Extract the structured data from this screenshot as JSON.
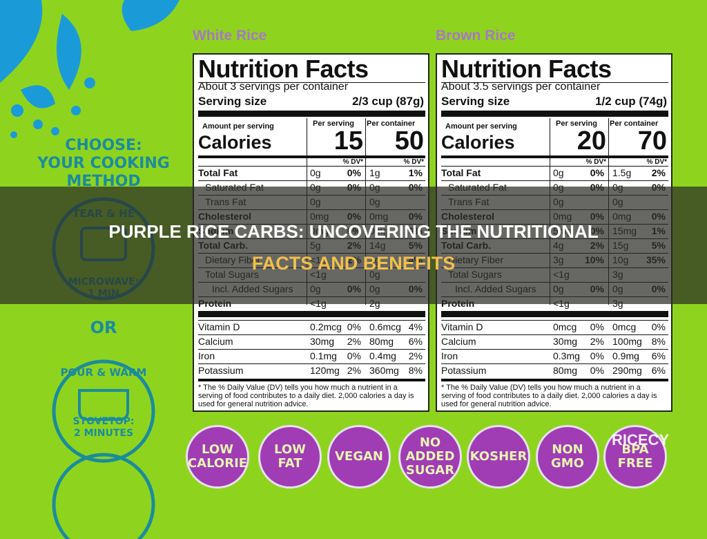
{
  "left": {
    "choose": [
      "CHOOSE:",
      "YOUR COOKING",
      "METHOD"
    ],
    "circle1": "TEAR & HE",
    "microwave": [
      "MICROWAVE:",
      "1 MIN"
    ],
    "or": "OR",
    "circle2": "POUR & WARM",
    "stovetop": [
      "STOVETOP:",
      "2 MINUTES"
    ]
  },
  "labels": [
    {
      "heading": "White Rice",
      "title": "Nutrition Facts",
      "servings": "About 3 servings per container",
      "serving_size_label": "Serving size",
      "serving_size": "2/3 cup (87g)",
      "amount": "Amount per serving",
      "calories_label": "Calories",
      "per_serving": "Per serving",
      "per_container": "Per container",
      "calories_serving": "15",
      "calories_container": "50",
      "dv": "% DV*",
      "rows": [
        {
          "name": "Total Fat",
          "s": "0g",
          "sdv": "0%",
          "c": "1g",
          "cdv": "1%",
          "bold": true
        },
        {
          "name": "Saturated Fat",
          "s": "0g",
          "sdv": "0%",
          "c": "0g",
          "cdv": "0%"
        },
        {
          "name": "Trans Fat",
          "s": "0g",
          "c": "0g"
        },
        {
          "name": "Cholesterol",
          "s": "0mg",
          "sdv": "0%",
          "c": "0mg",
          "cdv": "0%",
          "bold": true
        },
        {
          "name": "Sodium",
          "s": "0mg",
          "sdv": "0%",
          "c": "0mg",
          "cdv": "0%",
          "bold": true
        },
        {
          "name": "Total Carb.",
          "s": "5g",
          "sdv": "2%",
          "c": "14g",
          "cdv": "5%",
          "bold": true
        },
        {
          "name": "Dietary Fiber",
          "s": "<1g",
          "sdv": "2%",
          "c": "1g",
          "cdv": "4%"
        },
        {
          "name": "Total Sugars",
          "s": "<1g",
          "c": "0g"
        },
        {
          "name": "Incl. Added Sugars",
          "s": "0g",
          "sdv": "0%",
          "c": "0g",
          "cdv": "0%"
        },
        {
          "name": "Protein",
          "s": "<1g",
          "c": "2g",
          "bold": true
        }
      ],
      "vitamins": [
        {
          "name": "Vitamin D",
          "s": "0.2mcg",
          "sdv": "0%",
          "c": "0.6mcg",
          "cdv": "4%"
        },
        {
          "name": "Calcium",
          "s": "30mg",
          "sdv": "2%",
          "c": "80mg",
          "cdv": "6%"
        },
        {
          "name": "Iron",
          "s": "0.1mg",
          "sdv": "0%",
          "c": "0.4mg",
          "cdv": "2%"
        },
        {
          "name": "Potassium",
          "s": "120mg",
          "sdv": "2%",
          "c": "360mg",
          "cdv": "8%"
        }
      ],
      "footnote": [
        "* The % Daily Value (DV) tells you how much a nutrient in a",
        "serving of food contributes to a daily diet. 2,000 calories a day is",
        "used for general nutrition advice."
      ]
    },
    {
      "heading": "Brown Rice",
      "title": "Nutrition Facts",
      "servings": "About 3.5 servings per container",
      "serving_size_label": "Serving size",
      "serving_size": "1/2 cup (74g)",
      "amount": "Amount per serving",
      "calories_label": "Calories",
      "per_serving": "Per serving",
      "per_container": "Per container",
      "calories_serving": "20",
      "calories_container": "70",
      "dv": "% DV*",
      "rows": [
        {
          "name": "Total Fat",
          "s": "0g",
          "sdv": "0%",
          "c": "1.5g",
          "cdv": "2%",
          "bold": true
        },
        {
          "name": "Saturated Fat",
          "s": "0g",
          "sdv": "0%",
          "c": "0g",
          "cdv": "0%"
        },
        {
          "name": "Trans Fat",
          "s": "0g",
          "c": "0g"
        },
        {
          "name": "Cholesterol",
          "s": "0mg",
          "sdv": "0%",
          "c": "0mg",
          "cdv": "0%",
          "bold": true
        },
        {
          "name": "Sodium",
          "s": "5mg",
          "sdv": "0%",
          "c": "15mg",
          "cdv": "1%",
          "bold": true
        },
        {
          "name": "Total Carb.",
          "s": "4g",
          "sdv": "2%",
          "c": "15g",
          "cdv": "5%",
          "bold": true
        },
        {
          "name": "Dietary Fiber",
          "s": "3g",
          "sdv": "10%",
          "c": "10g",
          "cdv": "35%"
        },
        {
          "name": "Total Sugars",
          "s": "<1g",
          "c": "3g"
        },
        {
          "name": "Incl. Added Sugars",
          "s": "0g",
          "sdv": "0%",
          "c": "0g",
          "cdv": "0%"
        },
        {
          "name": "Protein",
          "s": "<1g",
          "c": "3g",
          "bold": true
        }
      ],
      "vitamins": [
        {
          "name": "Vitamin D",
          "s": "0mcg",
          "sdv": "0%",
          "c": "0mcg",
          "cdv": "0%"
        },
        {
          "name": "Calcium",
          "s": "30mg",
          "sdv": "2%",
          "c": "100mg",
          "cdv": "8%"
        },
        {
          "name": "Iron",
          "s": "0.3mg",
          "sdv": "0%",
          "c": "0.9mg",
          "cdv": "6%"
        },
        {
          "name": "Potassium",
          "s": "80mg",
          "sdv": "0%",
          "c": "290mg",
          "cdv": "6%"
        }
      ],
      "footnote": [
        "* The % Daily Value (DV) tells you how much a nutrient in a",
        "serving of food contributes to a daily diet. 2,000 calories a day is",
        "used for general nutrition advice."
      ]
    }
  ],
  "title": [
    "PURPLE RICE CARBS: UNCOVERING THE NUTRITIONAL",
    "FACTS AND BENEFITS"
  ],
  "badges": [
    [
      "LOW",
      "CALORIE"
    ],
    [
      "LOW",
      "FAT"
    ],
    [
      "VEGAN"
    ],
    [
      "NO",
      "ADDED",
      "SUGAR"
    ],
    [
      "KOSHER"
    ],
    [
      "NON",
      "GMO"
    ],
    [
      "BPA",
      "FREE"
    ]
  ],
  "watermark": "RICECY"
}
